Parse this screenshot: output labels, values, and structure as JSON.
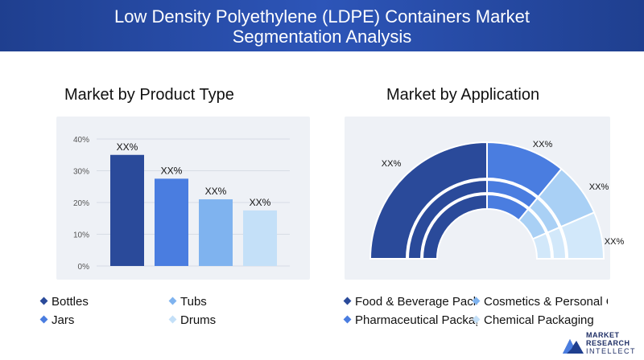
{
  "header": {
    "title_line1": "Low Density Polyethylene (LDPE) Containers Market",
    "title_line2": "Segmentation Analysis"
  },
  "sections": {
    "left_title": "Market by Product Type",
    "right_title": "Market by Application"
  },
  "chart_data": [
    {
      "type": "bar",
      "categories": [
        "Bottles",
        "Tubs",
        "Jars",
        "Drums"
      ],
      "values": [
        35,
        27.5,
        21,
        17.5
      ],
      "data_labels": [
        "XX%",
        "XX%",
        "XX%",
        "XX%"
      ],
      "colors": [
        "#2a4a9a",
        "#4a7de0",
        "#7fb3ef",
        "#c4e0f8"
      ],
      "yticks": [
        "0%",
        "10%",
        "20%",
        "30%",
        "40%"
      ],
      "ylim": [
        0,
        40
      ],
      "grid": true
    },
    {
      "type": "pie",
      "style": "half-donut",
      "categories": [
        "Food & Beverage Packaging",
        "Cosmetics & Personal Care",
        "Pharmaceutical Packaging",
        "Chemical Packaging"
      ],
      "values": [
        50,
        22,
        15,
        13
      ],
      "data_labels": [
        "XX%",
        "XX%",
        "XX%",
        "XX%"
      ],
      "colors": [
        "#2a4a9a",
        "#4a7de0",
        "#a9d0f5",
        "#d2e8fa"
      ]
    }
  ],
  "legend_left": [
    {
      "label": "Bottles",
      "color": "#2a4a9a"
    },
    {
      "label": "Tubs",
      "color": "#7fb3ef"
    },
    {
      "label": "Jars",
      "color": "#4a7de0"
    },
    {
      "label": "Drums",
      "color": "#c4e0f8"
    }
  ],
  "legend_right": [
    {
      "label": "Food & Beverage Packaging",
      "color": "#2a4a9a"
    },
    {
      "label": "Cosmetics & Personal Care",
      "color": "#7fb3ef"
    },
    {
      "label": "Pharmaceutical Packaging",
      "color": "#4a7de0"
    },
    {
      "label": "Chemical Packaging",
      "color": "#c4e0f8"
    }
  ],
  "logo": {
    "line1": "MARKET",
    "line2": "RESEARCH",
    "line3": "INTELLECT"
  }
}
